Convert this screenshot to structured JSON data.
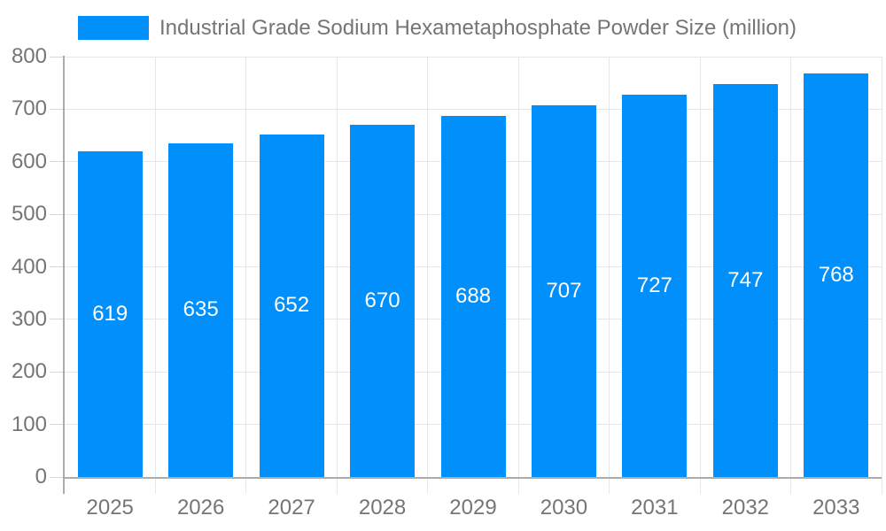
{
  "legend": {
    "label": "Industrial Grade Sodium Hexametaphosphate Powder Size (million)",
    "marker_color": "#008FFB"
  },
  "chart_data": {
    "type": "bar",
    "title": "Industrial Grade Sodium Hexametaphosphate Powder Size (million)",
    "categories": [
      "2025",
      "2026",
      "2027",
      "2028",
      "2029",
      "2030",
      "2031",
      "2032",
      "2033"
    ],
    "values": [
      619,
      635,
      652,
      670,
      688,
      707,
      727,
      747,
      768
    ],
    "xlabel": "",
    "ylabel": "",
    "ylim": [
      0,
      800
    ],
    "yticks": [
      0,
      100,
      200,
      300,
      400,
      500,
      600,
      700,
      800
    ],
    "grid": true,
    "legend_position": "top-left",
    "value_labels": "inside-center",
    "colors": {
      "bar": "#008FFB",
      "grid": "#e7e7e7",
      "axis": "#acacac",
      "tick": "#d7d7d7",
      "text": "#757575",
      "value_label": "#ffffff",
      "background": "#ffffff"
    }
  }
}
